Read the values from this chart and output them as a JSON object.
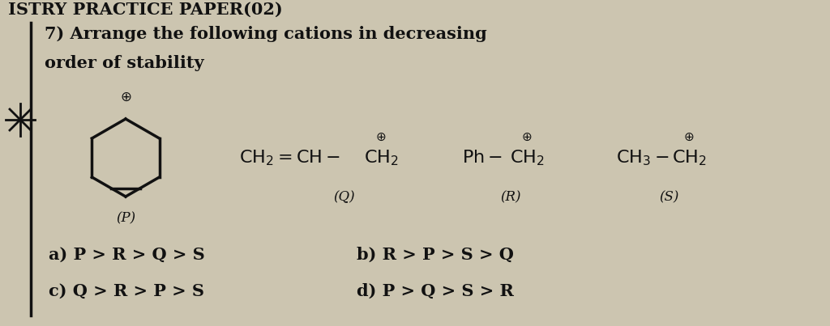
{
  "background_color": "#ccc5b0",
  "header_text": "ISTRY PRACTICE PAPER(02)",
  "text_color": "#111111",
  "figsize": [
    10.24,
    4.03
  ],
  "dpi": 100,
  "answer_a": "a) P > R > Q > S",
  "answer_b": "b) R > P > S > Q",
  "answer_c": "c) Q > R > P > S",
  "answer_d": "d) P > Q > S > R",
  "label_P": "(P)",
  "label_Q": "(Q)",
  "label_R": "(R)",
  "label_S": "(S)"
}
